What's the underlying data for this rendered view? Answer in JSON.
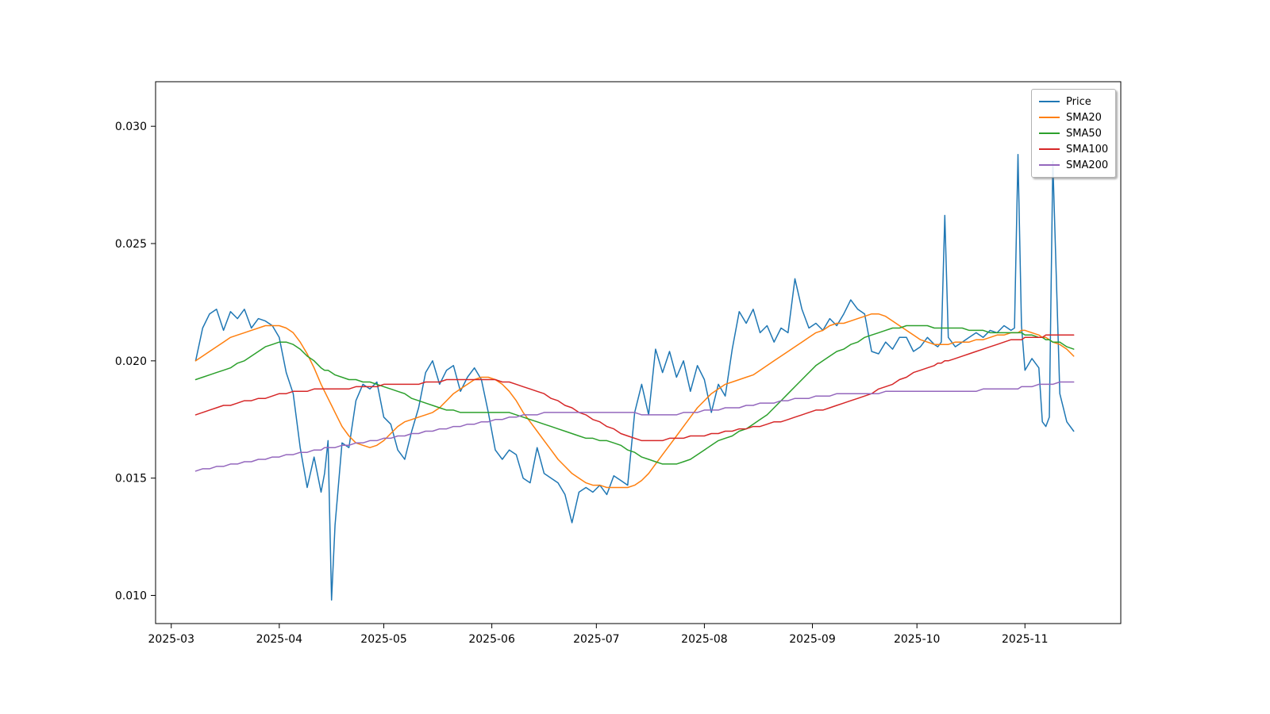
{
  "chart_data": {
    "type": "line",
    "title": "",
    "xlabel": "",
    "ylabel": "",
    "grid": false,
    "legend_position": "upper right",
    "x_unit": "days since 2025-03-01",
    "xlim_days": [
      -4.5,
      272.5
    ],
    "ylim": [
      0.0088,
      0.0319
    ],
    "x_ticks": [
      {
        "day": 0,
        "label": "2025-03"
      },
      {
        "day": 31,
        "label": "2025-04"
      },
      {
        "day": 61,
        "label": "2025-05"
      },
      {
        "day": 92,
        "label": "2025-06"
      },
      {
        "day": 122,
        "label": "2025-07"
      },
      {
        "day": 153,
        "label": "2025-08"
      },
      {
        "day": 184,
        "label": "2025-09"
      },
      {
        "day": 214,
        "label": "2025-10"
      },
      {
        "day": 245,
        "label": "2025-11"
      }
    ],
    "y_ticks": [
      {
        "value": 0.01,
        "label": "0.010"
      },
      {
        "value": 0.015,
        "label": "0.015"
      },
      {
        "value": 0.02,
        "label": "0.020"
      },
      {
        "value": 0.025,
        "label": "0.025"
      },
      {
        "value": 0.03,
        "label": "0.030"
      }
    ],
    "days": [
      7,
      9,
      11,
      13,
      15,
      17,
      19,
      21,
      23,
      25,
      27,
      29,
      31,
      33,
      35,
      37,
      39,
      41,
      43,
      44,
      45,
      46,
      47,
      49,
      51,
      53,
      55,
      57,
      59,
      61,
      63,
      65,
      67,
      69,
      71,
      73,
      75,
      77,
      79,
      81,
      83,
      85,
      87,
      89,
      91,
      93,
      95,
      97,
      99,
      101,
      103,
      105,
      107,
      109,
      111,
      113,
      115,
      117,
      119,
      121,
      123,
      125,
      127,
      129,
      131,
      133,
      135,
      137,
      139,
      141,
      143,
      145,
      147,
      149,
      151,
      153,
      155,
      157,
      159,
      161,
      163,
      165,
      167,
      169,
      171,
      173,
      175,
      177,
      179,
      181,
      183,
      185,
      187,
      189,
      191,
      193,
      195,
      197,
      199,
      201,
      203,
      205,
      207,
      209,
      211,
      213,
      215,
      217,
      219,
      220,
      221,
      222,
      223,
      225,
      227,
      229,
      231,
      233,
      235,
      237,
      239,
      241,
      242,
      243,
      244,
      245,
      247,
      249,
      250,
      251,
      252,
      253,
      255,
      257,
      259
    ],
    "series": [
      {
        "name": "Price",
        "color": "#1f77b4",
        "values": [
          0.02,
          0.0214,
          0.022,
          0.0222,
          0.0213,
          0.0221,
          0.0218,
          0.0222,
          0.0214,
          0.0218,
          0.0217,
          0.0215,
          0.021,
          0.0195,
          0.0186,
          0.0163,
          0.0146,
          0.0159,
          0.0144,
          0.0152,
          0.0166,
          0.0098,
          0.013,
          0.0165,
          0.0163,
          0.0183,
          0.019,
          0.0188,
          0.0191,
          0.0176,
          0.0173,
          0.0162,
          0.0158,
          0.017,
          0.018,
          0.0195,
          0.02,
          0.019,
          0.0196,
          0.0198,
          0.0187,
          0.0193,
          0.0197,
          0.0192,
          0.0178,
          0.0162,
          0.0158,
          0.0162,
          0.016,
          0.015,
          0.0148,
          0.0163,
          0.0152,
          0.015,
          0.0148,
          0.0143,
          0.0131,
          0.0144,
          0.0146,
          0.0144,
          0.0147,
          0.0143,
          0.0151,
          0.0149,
          0.0147,
          0.0178,
          0.019,
          0.0177,
          0.0205,
          0.0195,
          0.0204,
          0.0193,
          0.02,
          0.0187,
          0.0198,
          0.0192,
          0.0178,
          0.019,
          0.0185,
          0.0205,
          0.0221,
          0.0216,
          0.0222,
          0.0212,
          0.0215,
          0.0208,
          0.0214,
          0.0212,
          0.0235,
          0.0222,
          0.0214,
          0.0216,
          0.0213,
          0.0218,
          0.0215,
          0.022,
          0.0226,
          0.0222,
          0.022,
          0.0204,
          0.0203,
          0.0208,
          0.0205,
          0.021,
          0.021,
          0.0204,
          0.0206,
          0.021,
          0.0207,
          0.0206,
          0.0208,
          0.0262,
          0.021,
          0.0206,
          0.0208,
          0.021,
          0.0212,
          0.021,
          0.0213,
          0.0212,
          0.0215,
          0.0213,
          0.0214,
          0.0288,
          0.0215,
          0.0196,
          0.0201,
          0.0197,
          0.0174,
          0.0172,
          0.0176,
          0.0285,
          0.0186,
          0.0174,
          0.017
        ]
      },
      {
        "name": "SMA20",
        "color": "#ff7f0e",
        "values": [
          0.02,
          0.0202,
          0.0204,
          0.0206,
          0.0208,
          0.021,
          0.0211,
          0.0212,
          0.0213,
          0.0214,
          0.0215,
          0.0215,
          0.0215,
          0.0214,
          0.0212,
          0.0208,
          0.0203,
          0.0197,
          0.019,
          0.0187,
          0.0184,
          0.0181,
          0.0178,
          0.0172,
          0.0168,
          0.0165,
          0.0164,
          0.0163,
          0.0164,
          0.0166,
          0.0169,
          0.0172,
          0.0174,
          0.0175,
          0.0176,
          0.0177,
          0.0178,
          0.018,
          0.0183,
          0.0186,
          0.0188,
          0.019,
          0.0192,
          0.0193,
          0.0193,
          0.0192,
          0.019,
          0.0187,
          0.0183,
          0.0178,
          0.0174,
          0.017,
          0.0166,
          0.0162,
          0.0158,
          0.0155,
          0.0152,
          0.015,
          0.0148,
          0.0147,
          0.0147,
          0.0146,
          0.0146,
          0.0146,
          0.0146,
          0.0147,
          0.0149,
          0.0152,
          0.0156,
          0.016,
          0.0164,
          0.0168,
          0.0172,
          0.0176,
          0.018,
          0.0183,
          0.0186,
          0.0188,
          0.019,
          0.0191,
          0.0192,
          0.0193,
          0.0194,
          0.0196,
          0.0198,
          0.02,
          0.0202,
          0.0204,
          0.0206,
          0.0208,
          0.021,
          0.0212,
          0.0213,
          0.0215,
          0.0216,
          0.0216,
          0.0217,
          0.0218,
          0.0219,
          0.022,
          0.022,
          0.0219,
          0.0217,
          0.0215,
          0.0213,
          0.0211,
          0.0209,
          0.0208,
          0.0207,
          0.0207,
          0.0207,
          0.0207,
          0.0207,
          0.0208,
          0.0208,
          0.0208,
          0.0209,
          0.0209,
          0.021,
          0.0211,
          0.0211,
          0.0212,
          0.0212,
          0.0212,
          0.0213,
          0.0213,
          0.0212,
          0.0211,
          0.021,
          0.021,
          0.0209,
          0.0208,
          0.0207,
          0.0205,
          0.0202
        ]
      },
      {
        "name": "SMA50",
        "color": "#2ca02c",
        "values": [
          0.0192,
          0.0193,
          0.0194,
          0.0195,
          0.0196,
          0.0197,
          0.0199,
          0.02,
          0.0202,
          0.0204,
          0.0206,
          0.0207,
          0.0208,
          0.0208,
          0.0207,
          0.0205,
          0.0202,
          0.02,
          0.0197,
          0.0196,
          0.0196,
          0.0195,
          0.0194,
          0.0193,
          0.0192,
          0.0192,
          0.0191,
          0.0191,
          0.019,
          0.0189,
          0.0188,
          0.0187,
          0.0186,
          0.0184,
          0.0183,
          0.0182,
          0.0181,
          0.018,
          0.0179,
          0.0179,
          0.0178,
          0.0178,
          0.0178,
          0.0178,
          0.0178,
          0.0178,
          0.0178,
          0.0178,
          0.0177,
          0.0176,
          0.0175,
          0.0174,
          0.0173,
          0.0172,
          0.0171,
          0.017,
          0.0169,
          0.0168,
          0.0167,
          0.0167,
          0.0166,
          0.0166,
          0.0165,
          0.0164,
          0.0162,
          0.0161,
          0.0159,
          0.0158,
          0.0157,
          0.0156,
          0.0156,
          0.0156,
          0.0157,
          0.0158,
          0.016,
          0.0162,
          0.0164,
          0.0166,
          0.0167,
          0.0168,
          0.017,
          0.0171,
          0.0173,
          0.0175,
          0.0177,
          0.018,
          0.0183,
          0.0186,
          0.0189,
          0.0192,
          0.0195,
          0.0198,
          0.02,
          0.0202,
          0.0204,
          0.0205,
          0.0207,
          0.0208,
          0.021,
          0.0211,
          0.0212,
          0.0213,
          0.0214,
          0.0214,
          0.0215,
          0.0215,
          0.0215,
          0.0215,
          0.0214,
          0.0214,
          0.0214,
          0.0214,
          0.0214,
          0.0214,
          0.0214,
          0.0213,
          0.0213,
          0.0213,
          0.0212,
          0.0212,
          0.0212,
          0.0212,
          0.0212,
          0.0212,
          0.0212,
          0.0211,
          0.0211,
          0.021,
          0.021,
          0.0209,
          0.0209,
          0.0208,
          0.0208,
          0.0206,
          0.0205
        ]
      },
      {
        "name": "SMA100",
        "color": "#d62728",
        "values": [
          0.0177,
          0.0178,
          0.0179,
          0.018,
          0.0181,
          0.0181,
          0.0182,
          0.0183,
          0.0183,
          0.0184,
          0.0184,
          0.0185,
          0.0186,
          0.0186,
          0.0187,
          0.0187,
          0.0187,
          0.0188,
          0.0188,
          0.0188,
          0.0188,
          0.0188,
          0.0188,
          0.0188,
          0.0188,
          0.0189,
          0.0189,
          0.0189,
          0.0189,
          0.019,
          0.019,
          0.019,
          0.019,
          0.019,
          0.019,
          0.0191,
          0.0191,
          0.0191,
          0.0192,
          0.0192,
          0.0192,
          0.0192,
          0.0192,
          0.0192,
          0.0192,
          0.0192,
          0.0191,
          0.0191,
          0.019,
          0.0189,
          0.0188,
          0.0187,
          0.0186,
          0.0184,
          0.0183,
          0.0181,
          0.018,
          0.0178,
          0.0177,
          0.0175,
          0.0174,
          0.0172,
          0.0171,
          0.0169,
          0.0168,
          0.0167,
          0.0166,
          0.0166,
          0.0166,
          0.0166,
          0.0167,
          0.0167,
          0.0167,
          0.0168,
          0.0168,
          0.0168,
          0.0169,
          0.0169,
          0.017,
          0.017,
          0.0171,
          0.0171,
          0.0172,
          0.0172,
          0.0173,
          0.0174,
          0.0174,
          0.0175,
          0.0176,
          0.0177,
          0.0178,
          0.0179,
          0.0179,
          0.018,
          0.0181,
          0.0182,
          0.0183,
          0.0184,
          0.0185,
          0.0186,
          0.0188,
          0.0189,
          0.019,
          0.0192,
          0.0193,
          0.0195,
          0.0196,
          0.0197,
          0.0198,
          0.0199,
          0.0199,
          0.02,
          0.02,
          0.0201,
          0.0202,
          0.0203,
          0.0204,
          0.0205,
          0.0206,
          0.0207,
          0.0208,
          0.0209,
          0.0209,
          0.0209,
          0.0209,
          0.021,
          0.021,
          0.021,
          0.021,
          0.0211,
          0.0211,
          0.0211,
          0.0211,
          0.0211,
          0.0211
        ]
      },
      {
        "name": "SMA200",
        "color": "#9467bd",
        "values": [
          0.0153,
          0.0154,
          0.0154,
          0.0155,
          0.0155,
          0.0156,
          0.0156,
          0.0157,
          0.0157,
          0.0158,
          0.0158,
          0.0159,
          0.0159,
          0.016,
          0.016,
          0.0161,
          0.0161,
          0.0162,
          0.0162,
          0.0163,
          0.0163,
          0.0163,
          0.0163,
          0.0164,
          0.0164,
          0.0165,
          0.0165,
          0.0166,
          0.0166,
          0.0167,
          0.0167,
          0.0168,
          0.0168,
          0.0169,
          0.0169,
          0.017,
          0.017,
          0.0171,
          0.0171,
          0.0172,
          0.0172,
          0.0173,
          0.0173,
          0.0174,
          0.0174,
          0.0175,
          0.0175,
          0.0176,
          0.0176,
          0.0177,
          0.0177,
          0.0177,
          0.0178,
          0.0178,
          0.0178,
          0.0178,
          0.0178,
          0.0178,
          0.0178,
          0.0178,
          0.0178,
          0.0178,
          0.0178,
          0.0178,
          0.0178,
          0.0178,
          0.0177,
          0.0177,
          0.0177,
          0.0177,
          0.0177,
          0.0177,
          0.0178,
          0.0178,
          0.0178,
          0.0179,
          0.0179,
          0.0179,
          0.018,
          0.018,
          0.018,
          0.0181,
          0.0181,
          0.0182,
          0.0182,
          0.0182,
          0.0183,
          0.0183,
          0.0184,
          0.0184,
          0.0184,
          0.0185,
          0.0185,
          0.0185,
          0.0186,
          0.0186,
          0.0186,
          0.0186,
          0.0186,
          0.0186,
          0.0186,
          0.0187,
          0.0187,
          0.0187,
          0.0187,
          0.0187,
          0.0187,
          0.0187,
          0.0187,
          0.0187,
          0.0187,
          0.0187,
          0.0187,
          0.0187,
          0.0187,
          0.0187,
          0.0187,
          0.0188,
          0.0188,
          0.0188,
          0.0188,
          0.0188,
          0.0188,
          0.0188,
          0.0189,
          0.0189,
          0.0189,
          0.019,
          0.019,
          0.019,
          0.019,
          0.019,
          0.0191,
          0.0191,
          0.0191
        ]
      }
    ]
  }
}
